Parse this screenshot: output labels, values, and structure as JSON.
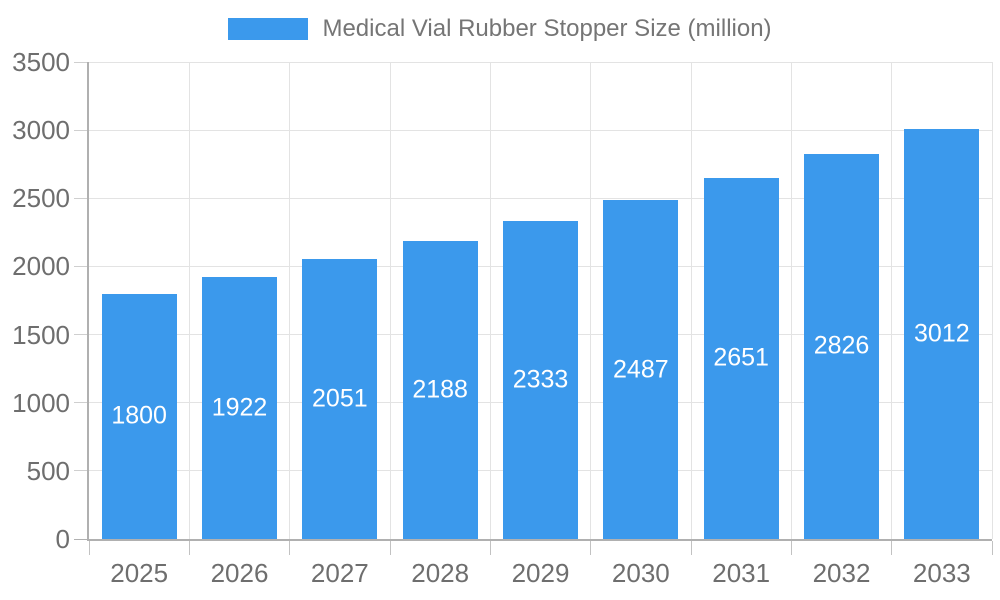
{
  "legend": {
    "label": "Medical Vial Rubber Stopper Size (million)",
    "swatch_color": "#3B99EC"
  },
  "chart_data": {
    "type": "bar",
    "title": "Medical Vial Rubber Stopper Size (million)",
    "categories": [
      "2025",
      "2026",
      "2027",
      "2028",
      "2029",
      "2030",
      "2031",
      "2032",
      "2033"
    ],
    "values": [
      1800,
      1922,
      2051,
      2188,
      2333,
      2487,
      2651,
      2826,
      3012
    ],
    "value_labels": [
      "1800",
      "1922",
      "2051",
      "2188",
      "2333",
      "2487",
      "2651",
      "2826",
      "3012"
    ],
    "xlabel": "",
    "ylabel": "",
    "ylim": [
      0,
      3500
    ],
    "ytick_step": 500,
    "yticks": [
      0,
      500,
      1000,
      1500,
      2000,
      2500,
      3000,
      3500
    ],
    "ytick_labels": [
      "0",
      "500",
      "1000",
      "1500",
      "2000",
      "2500",
      "3000",
      "3500"
    ],
    "grid": true,
    "legend_position": "top",
    "bar_color": "#3B99EC",
    "value_label_color": "#ffffff",
    "axis_color": "#b0b0b0",
    "grid_color": "#e3e3e3",
    "tick_color": "#c2c2c2",
    "text_color": "#6e6e6e",
    "bar_width_fraction": 0.75
  }
}
